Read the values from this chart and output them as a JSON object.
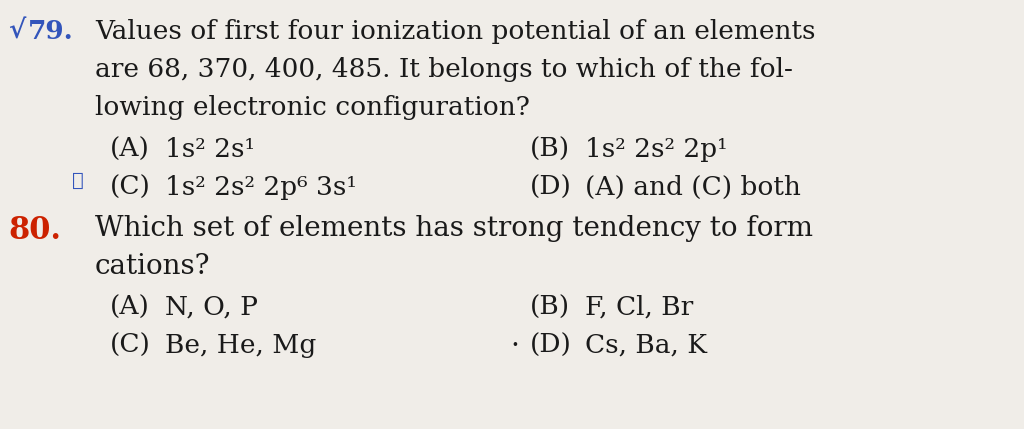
{
  "background_color": "#f0ede8",
  "q79_num_symbol": "79.",
  "q79_line1": "Values of first four ionization potential of an elements",
  "q79_line2": "are 68, 370, 400, 485. It belongs to which of the fol-",
  "q79_line3": "lowing electronic configuration?",
  "q79_A_label": "(A)",
  "q79_A_text": "1s² 2s¹",
  "q79_B_label": "(B)",
  "q79_B_text": "1s² 2s² 2p¹",
  "q79_C_label": "(C)",
  "q79_C_text": "1s² 2s² 2p⁶ 3s¹",
  "q79_D_label": "(D)",
  "q79_D_text": "(A) and (C) both",
  "q80_number": "80.",
  "q80_line1": "Which set of elements has strong tendency to form",
  "q80_line2": "cations?",
  "q80_A_label": "(A)",
  "q80_A_text": "N, O, P",
  "q80_B_label": "(B)",
  "q80_B_text": "F, Cl, Br",
  "q80_C_label": "(C)",
  "q80_C_text": "Be, He, Mg",
  "q80_D_label": "(D)",
  "q80_D_text": "Cs, Ba, K",
  "check_color": "#3355bb",
  "number_color": "#cc2200",
  "text_color": "#1a1a1a",
  "font_size_body": 19,
  "font_size_q79_num": 19,
  "font_size_q80_num": 22
}
